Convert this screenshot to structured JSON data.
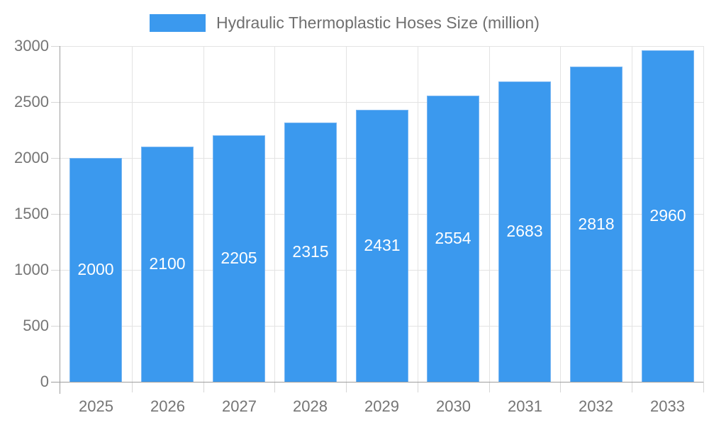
{
  "legend": {
    "label": "Hydraulic Thermoplastic Hoses Size (million)"
  },
  "chart_data": {
    "type": "bar",
    "title": "Hydraulic Thermoplastic Hoses Size (million)",
    "categories": [
      "2025",
      "2026",
      "2027",
      "2028",
      "2029",
      "2030",
      "2031",
      "2032",
      "2033"
    ],
    "values": [
      2000,
      2100,
      2205,
      2315,
      2431,
      2554,
      2683,
      2818,
      2960
    ],
    "value_labels_inside_bars": true,
    "xlabel": "",
    "ylabel": "",
    "ylim": [
      0,
      3000
    ],
    "yticks": [
      0,
      500,
      1000,
      1500,
      2000,
      2500,
      3000
    ],
    "grid": "horizontal gridlines at y ticks, vertical gridlines at category boundaries",
    "legend_position": "top-center",
    "colors": {
      "bar_fill": "#3b99ee",
      "bar_border": "#79b6f2",
      "value_label_text": "#ffffff",
      "axis_text": "#757575",
      "axis_line": "#9e9e9e",
      "gridline": "#e3e3e3",
      "tick": "#d6d6d6",
      "background": "#ffffff"
    }
  }
}
